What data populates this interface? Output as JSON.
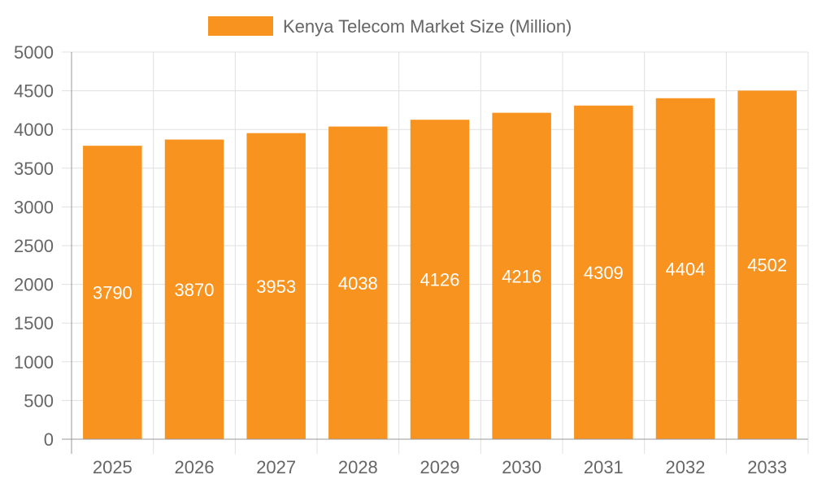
{
  "chart_data": {
    "type": "bar",
    "categories": [
      "2025",
      "2026",
      "2027",
      "2028",
      "2029",
      "2030",
      "2031",
      "2032",
      "2033"
    ],
    "series": [
      {
        "name": "Kenya Telecom Market Size (Million)",
        "values": [
          3790,
          3870,
          3953,
          4038,
          4126,
          4216,
          4309,
          4404,
          4502
        ],
        "color": "#f7931e"
      }
    ],
    "ylim": [
      0,
      5000
    ],
    "yticks": [
      0,
      500,
      1000,
      1500,
      2000,
      2500,
      3000,
      3500,
      4000,
      4500,
      5000
    ],
    "grid": true,
    "legend_position": "top-center",
    "data_labels": true
  }
}
